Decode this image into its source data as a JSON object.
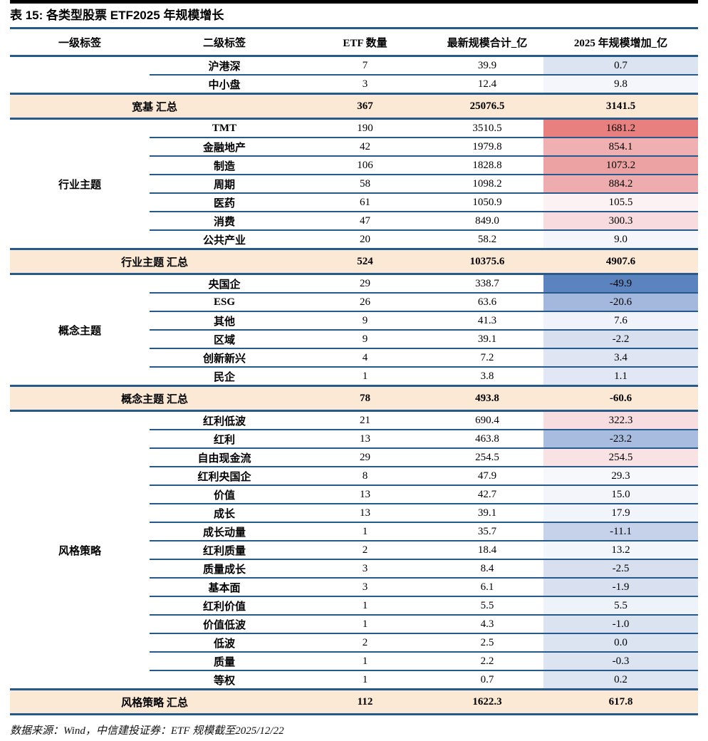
{
  "title": "表 15: 各类型股票 ETF2025 年规模增长",
  "columns": [
    "一级标签",
    "二级标签",
    "ETF 数量",
    "最新规模合计_亿",
    "2025 年规模增加_亿"
  ],
  "colors": {
    "rule_navy": "#26598c",
    "summary_bg": "#fbe8d5",
    "top_bar": "#000000"
  },
  "groups": [
    {
      "label": "",
      "rows": [
        {
          "label": "沪港深",
          "count": "7",
          "total": "39.9",
          "change": "0.7",
          "change_bg": "#dce4f1"
        },
        {
          "label": "中小盘",
          "count": "3",
          "total": "12.4",
          "change": "9.8",
          "change_bg": "#f4f6fb"
        }
      ],
      "summary": {
        "label": "宽基 汇总",
        "count": "367",
        "total": "25076.5",
        "change": "3141.5"
      }
    },
    {
      "label": "行业主题",
      "rows": [
        {
          "label": "TMT",
          "count": "190",
          "total": "3510.5",
          "change": "1681.2",
          "change_bg": "#e7807f"
        },
        {
          "label": "金融地产",
          "count": "42",
          "total": "1979.8",
          "change": "854.1",
          "change_bg": "#f0b0b2"
        },
        {
          "label": "制造",
          "count": "106",
          "total": "1828.8",
          "change": "1073.2",
          "change_bg": "#eca1a3"
        },
        {
          "label": "周期",
          "count": "58",
          "total": "1098.2",
          "change": "884.2",
          "change_bg": "#efacae"
        },
        {
          "label": "医药",
          "count": "61",
          "total": "1050.9",
          "change": "105.5",
          "change_bg": "#fcf2f3"
        },
        {
          "label": "消费",
          "count": "47",
          "total": "849.0",
          "change": "300.3",
          "change_bg": "#f7dbde"
        },
        {
          "label": "公共产业",
          "count": "20",
          "total": "58.2",
          "change": "9.0",
          "change_bg": "#f4f6fb"
        }
      ],
      "summary": {
        "label": "行业主题 汇总",
        "count": "524",
        "total": "10375.6",
        "change": "4907.6"
      }
    },
    {
      "label": "概念主题",
      "rows": [
        {
          "label": "央国企",
          "count": "29",
          "total": "338.7",
          "change": "-49.9",
          "change_bg": "#5b83bd"
        },
        {
          "label": "ESG",
          "count": "26",
          "total": "63.6",
          "change": "-20.6",
          "change_bg": "#a3b8dc"
        },
        {
          "label": "其他",
          "count": "9",
          "total": "41.3",
          "change": "7.6",
          "change_bg": "#f0f4fa"
        },
        {
          "label": "区域",
          "count": "9",
          "total": "39.1",
          "change": "-2.2",
          "change_bg": "#d8e0f0"
        },
        {
          "label": "创新新兴",
          "count": "4",
          "total": "7.2",
          "change": "3.4",
          "change_bg": "#dfe5f3"
        },
        {
          "label": "民企",
          "count": "1",
          "total": "3.8",
          "change": "1.1",
          "change_bg": "#e1e7f4"
        }
      ],
      "summary": {
        "label": "概念主题 汇总",
        "count": "78",
        "total": "493.8",
        "change": "-60.6"
      }
    },
    {
      "label": "风格策略",
      "rows": [
        {
          "label": "红利低波",
          "count": "21",
          "total": "690.4",
          "change": "322.3",
          "change_bg": "#f8dde0"
        },
        {
          "label": "红利",
          "count": "13",
          "total": "463.8",
          "change": "-23.2",
          "change_bg": "#a8bcdf"
        },
        {
          "label": "自由现金流",
          "count": "29",
          "total": "254.5",
          "change": "254.5",
          "change_bg": "#f9e2e4"
        },
        {
          "label": "红利央国企",
          "count": "8",
          "total": "47.9",
          "change": "29.3",
          "change_bg": "#f7f8fc"
        },
        {
          "label": "价值",
          "count": "13",
          "total": "42.7",
          "change": "15.0",
          "change_bg": "#f3f5fb"
        },
        {
          "label": "成长",
          "count": "13",
          "total": "39.1",
          "change": "17.9",
          "change_bg": "#f2f4fb"
        },
        {
          "label": "成长动量",
          "count": "1",
          "total": "35.7",
          "change": "-11.1",
          "change_bg": "#c5d2e9"
        },
        {
          "label": "红利质量",
          "count": "2",
          "total": "18.4",
          "change": "13.2",
          "change_bg": "#f3f6fb"
        },
        {
          "label": "质量成长",
          "count": "3",
          "total": "8.4",
          "change": "-2.5",
          "change_bg": "#d8e0f0"
        },
        {
          "label": "基本面",
          "count": "3",
          "total": "6.1",
          "change": "-1.9",
          "change_bg": "#d9e1f1"
        },
        {
          "label": "红利价值",
          "count": "1",
          "total": "5.5",
          "change": "5.5",
          "change_bg": "#eef2f9"
        },
        {
          "label": "价值低波",
          "count": "1",
          "total": "4.3",
          "change": "-1.0",
          "change_bg": "#dbe3f1"
        },
        {
          "label": "低波",
          "count": "2",
          "total": "2.5",
          "change": "0.0",
          "change_bg": "#dce4f2"
        },
        {
          "label": "质量",
          "count": "1",
          "total": "2.2",
          "change": "-0.3",
          "change_bg": "#dce3f1"
        },
        {
          "label": "等权",
          "count": "1",
          "total": "0.7",
          "change": "0.2",
          "change_bg": "#dde5f2"
        }
      ],
      "summary": {
        "label": "风格策略 汇总",
        "count": "112",
        "total": "1622.3",
        "change": "617.8"
      }
    }
  ],
  "footer": "数据来源：Wind，中信建投证券：ETF 规模截至2025/12/22"
}
